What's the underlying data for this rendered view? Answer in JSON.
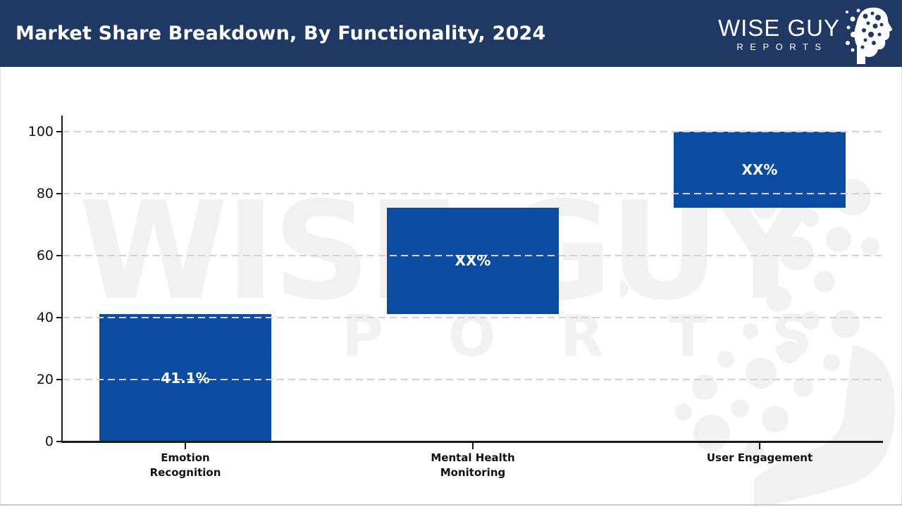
{
  "header": {
    "title": "Market Share Breakdown, By Functionality, 2024",
    "logo": {
      "line1": "WISE GUY",
      "line2": "REPORTS",
      "icon": "dotted-head-profile"
    }
  },
  "watermark": {
    "line1": "WISE GUY",
    "line2": "R E P O R T S"
  },
  "chart_data": {
    "type": "bar",
    "subtype": "waterfall-stacked-segments",
    "title": "Market Share Breakdown, By Functionality, 2024",
    "categories": [
      "Emotion Recognition",
      "Mental Health Monitoring",
      "User Engagement"
    ],
    "category_lines": [
      [
        "Emotion",
        "Recognition"
      ],
      [
        "Mental Health",
        "Monitoring"
      ],
      [
        "User Engagement"
      ]
    ],
    "bars": [
      {
        "label": "41.1%",
        "start": 0,
        "end": 41.1
      },
      {
        "label": "XX%",
        "start": 41.1,
        "end": 75.5
      },
      {
        "label": "XX%",
        "start": 75.5,
        "end": 100
      }
    ],
    "yticks": [
      0,
      20,
      40,
      60,
      80,
      100
    ],
    "ylim": [
      0,
      105
    ],
    "xlabel": "",
    "ylabel": "",
    "grid": "horizontal-dashed",
    "legend": "none",
    "bar_color": "#0b4ba1",
    "bar_label_color": "#ffffff",
    "header_color": "#203864"
  }
}
